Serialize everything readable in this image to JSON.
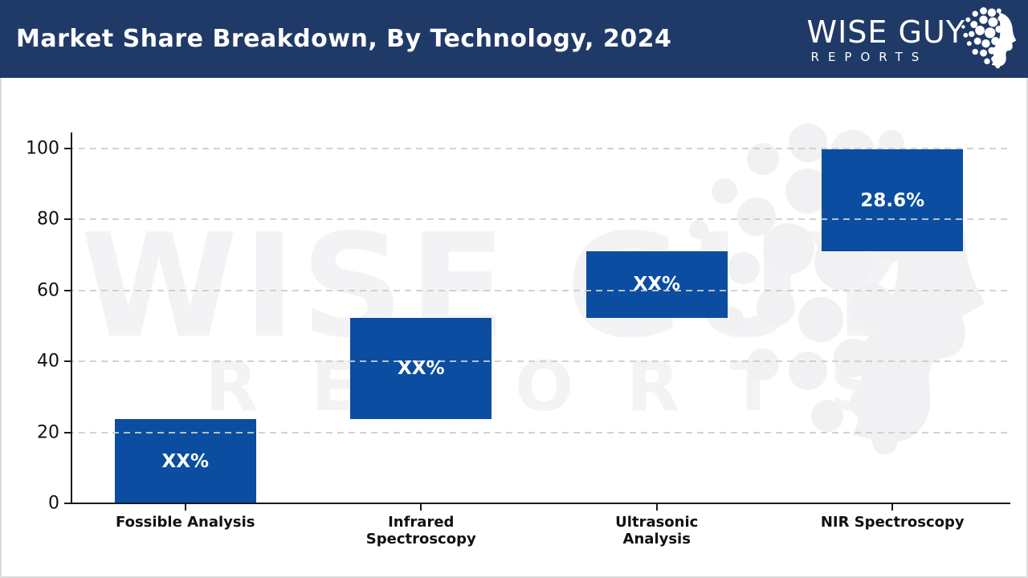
{
  "header": {
    "title": "Market Share Breakdown, By Technology, 2024",
    "logo": {
      "line1": "WISE GUY",
      "line2": "REPORTS"
    }
  },
  "watermark": {
    "line1": "WISE GUY",
    "line2": "REPORTS"
  },
  "colors": {
    "header_bg": "#203A68",
    "bar": "#0B4DA1",
    "bar_label": "#ffffff",
    "grid": "#cdcdcd",
    "axis": "#1a1a1a",
    "watermark": "#f3f3f5"
  },
  "chart_data": {
    "type": "bar",
    "subtype": "waterfall",
    "title": "Market Share Breakdown, By Technology, 2024",
    "xlabel": "",
    "ylabel": "",
    "ylim": [
      0,
      100
    ],
    "yticks": [
      0,
      20,
      40,
      60,
      80,
      100
    ],
    "grid": "horizontal-dashed",
    "legend": "none",
    "categories": [
      {
        "name": "Fossible Analysis",
        "lines": [
          "Fossible Analysis"
        ],
        "start": 0,
        "end": 23.7,
        "value": 23.7,
        "label": "XX%"
      },
      {
        "name": "Infrared Spectroscopy",
        "lines": [
          "Infrared",
          "Spectroscopy"
        ],
        "start": 23.7,
        "end": 52.3,
        "value": 28.6,
        "label": "XX%"
      },
      {
        "name": "Ultrasonic Analysis",
        "lines": [
          "Ultrasonic",
          "Analysis"
        ],
        "start": 52.3,
        "end": 71.0,
        "value": 18.7,
        "label": "XX%"
      },
      {
        "name": "NIR Spectroscopy",
        "lines": [
          "NIR Spectroscopy"
        ],
        "start": 71.0,
        "end": 99.6,
        "value": 28.6,
        "label": "28.6%"
      }
    ]
  }
}
